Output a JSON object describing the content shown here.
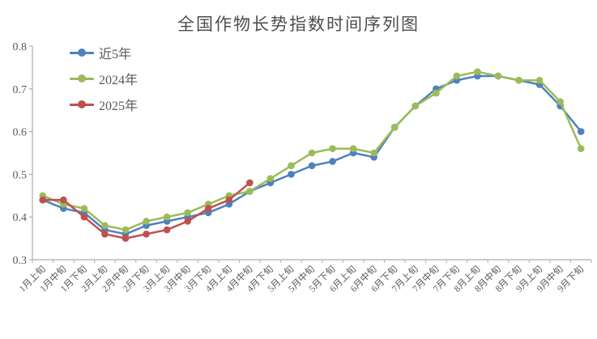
{
  "title": "全国作物长势指数时间序列图",
  "chart_data": {
    "type": "line",
    "title": "全国作物长势指数时间序列图",
    "xlabel": "",
    "ylabel": "",
    "ylim": [
      0.3,
      0.8
    ],
    "yticks": [
      "0.3",
      "0.4",
      "0.5",
      "0.6",
      "0.7",
      "0.8"
    ],
    "grid": false,
    "legend_position": "top-left",
    "categories": [
      "1月上旬",
      "1月中旬",
      "1月下旬",
      "2月上旬",
      "2月中旬",
      "2月下旬",
      "3月上旬",
      "3月中旬",
      "3月下旬",
      "4月上旬",
      "4月中旬",
      "4月下旬",
      "5月上旬",
      "5月中旬",
      "5月下旬",
      "6月上旬",
      "6月中旬",
      "6月下旬",
      "7月上旬",
      "7月中旬",
      "7月下旬",
      "8月上旬",
      "8月中旬",
      "8月下旬",
      "9月上旬",
      "9月中旬",
      "9月下旬"
    ],
    "series": [
      {
        "id": "recent5y",
        "name": "近5年",
        "color": "#4F81BD",
        "values": [
          0.44,
          0.42,
          0.41,
          0.37,
          0.36,
          0.38,
          0.39,
          0.4,
          0.41,
          0.43,
          0.46,
          0.48,
          0.5,
          0.52,
          0.53,
          0.55,
          0.54,
          0.61,
          0.66,
          0.7,
          0.72,
          0.73,
          0.73,
          0.72,
          0.71,
          0.66,
          0.6
        ]
      },
      {
        "id": "y2024",
        "name": "2024年",
        "color": "#9BBB59",
        "values": [
          0.45,
          0.43,
          0.42,
          0.38,
          0.37,
          0.39,
          0.4,
          0.41,
          0.43,
          0.45,
          0.46,
          0.49,
          0.52,
          0.55,
          0.56,
          0.56,
          0.55,
          0.61,
          0.66,
          0.69,
          0.73,
          0.74,
          0.73,
          0.72,
          0.72,
          0.67,
          0.56
        ]
      },
      {
        "id": "y2025",
        "name": "2025年",
        "color": "#C0504D",
        "values": [
          0.44,
          0.44,
          0.4,
          0.36,
          0.35,
          0.36,
          0.37,
          0.39,
          0.42,
          0.44,
          0.48
        ]
      }
    ]
  }
}
